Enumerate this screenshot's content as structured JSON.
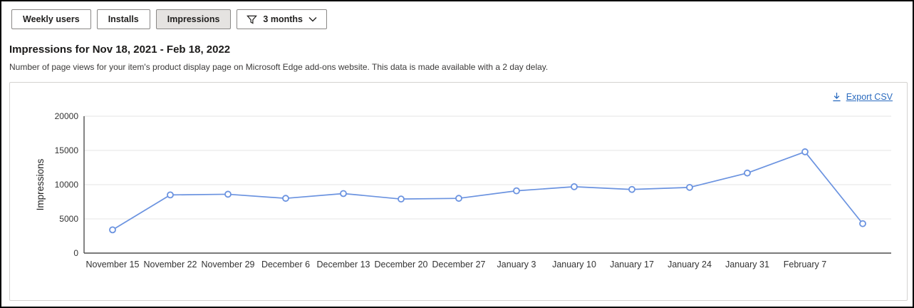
{
  "toolbar": {
    "buttons": [
      {
        "label": "Weekly users",
        "selected": false
      },
      {
        "label": "Installs",
        "selected": false
      },
      {
        "label": "Impressions",
        "selected": true
      }
    ],
    "filter": {
      "label": "3 months",
      "icon": "funnel-icon",
      "caret": "chevron-down-icon"
    }
  },
  "header": {
    "title": "Impressions for Nov 18, 2021 - Feb 18, 2022",
    "description": "Number of page views for your item's product display page on Microsoft Edge add-ons website. This data is made available with a 2 day delay."
  },
  "chart_panel": {
    "export_label": "Export CSV",
    "export_icon": "download-icon"
  },
  "colors": {
    "line": "#6b93e0",
    "marker_fill": "#ffffff",
    "grid": "#e6e6e6",
    "axis": "#4f4f4f",
    "tick_text": "#333333",
    "link": "#2b6bbf"
  },
  "chart_data": {
    "type": "line",
    "title": "",
    "ylabel": "Impressions",
    "xlabel": "",
    "ylim": [
      0,
      20000
    ],
    "yticks": [
      0,
      5000,
      10000,
      15000,
      20000
    ],
    "grid": "horizontal",
    "legend_position": "none",
    "x": [
      "November 15",
      "November 22",
      "November 29",
      "December 6",
      "December 13",
      "December 20",
      "December 27",
      "January 3",
      "January 10",
      "January 17",
      "January 24",
      "January 31",
      "February 7",
      ""
    ],
    "series": [
      {
        "name": "Impressions",
        "values": [
          3400,
          8500,
          8600,
          8000,
          8700,
          7900,
          8000,
          9100,
          9700,
          9300,
          9600,
          11700,
          14800,
          4300
        ]
      }
    ]
  }
}
